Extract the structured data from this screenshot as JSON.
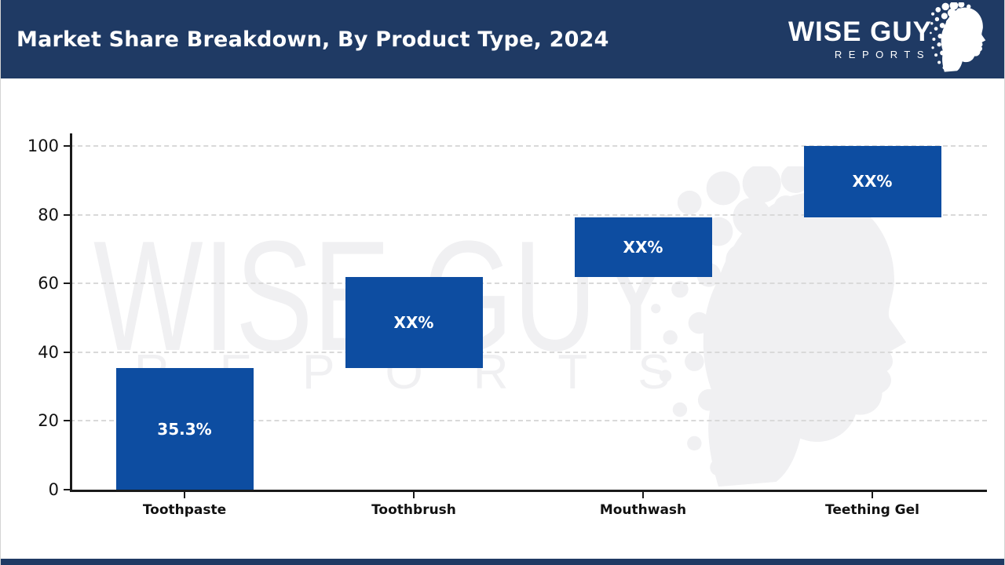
{
  "header": {
    "title": "Market Share Breakdown, By Product Type, 2024",
    "bg_color": "#1f3a64",
    "logo": {
      "line1": "WISE GUY",
      "line2": "REPORTS"
    }
  },
  "watermark": {
    "line1": "WISE GUY",
    "line2": "REPORTS"
  },
  "footer": {
    "bg_color": "#1f3a64"
  },
  "chart_data": {
    "type": "bar",
    "variant": "floating-waterfall",
    "title": "Market Share Breakdown, By Product Type, 2024",
    "categories": [
      "Toothpaste",
      "Toothbrush",
      "Mouthwash",
      "Teething Gel"
    ],
    "series": [
      {
        "name": "Market Share",
        "segments": [
          {
            "category": "Toothpaste",
            "start": 0,
            "end": 35.3,
            "label": "35.3%"
          },
          {
            "category": "Toothbrush",
            "start": 35.3,
            "end": 61.8,
            "label": "XX%"
          },
          {
            "category": "Mouthwash",
            "start": 61.8,
            "end": 79.3,
            "label": "XX%"
          },
          {
            "category": "Teething Gel",
            "start": 79.3,
            "end": 100,
            "label": "XX%"
          }
        ]
      }
    ],
    "xlabel": "",
    "ylabel": "",
    "ylim": [
      0,
      100
    ],
    "yticks": [
      0,
      20,
      40,
      60,
      80,
      100
    ],
    "grid": {
      "horizontal": true,
      "style": "dashed",
      "color": "#d9d9d9"
    },
    "legend": "none",
    "bar_color": "#0d4da1",
    "bar_label_color": "#ffffff",
    "axis_color": "#1a1a1a"
  }
}
